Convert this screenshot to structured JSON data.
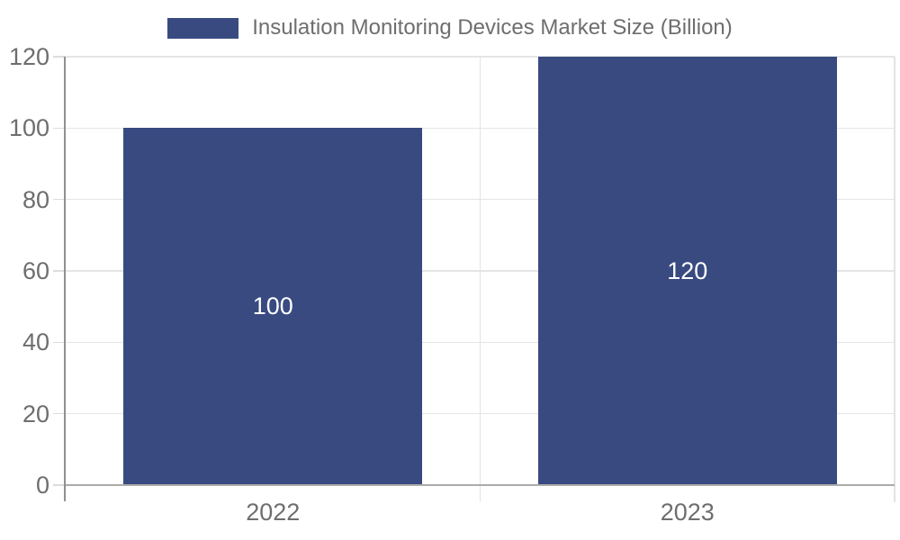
{
  "legend": {
    "label": "Insulation Monitoring Devices Market Size (Billion)"
  },
  "chart_data": {
    "type": "bar",
    "title": "Insulation Monitoring Devices Market Size (Billion)",
    "categories": [
      "2022",
      "2023"
    ],
    "series": [
      {
        "name": "Insulation Monitoring Devices Market Size (Billion)",
        "values": [
          100,
          120
        ]
      }
    ],
    "bar_value_labels": [
      "100",
      "120"
    ],
    "xlabel": "",
    "ylabel": "",
    "ylim": [
      0,
      120
    ],
    "yticks": [
      0,
      20,
      40,
      60,
      80,
      100,
      120
    ],
    "grid": true,
    "legend_position": "top-center",
    "colors": {
      "bar_fill": "#384A80",
      "bar_value_text": "#FFFFFF",
      "grid_line": "#E5E5E5",
      "split_line": "#E3E3E3",
      "y_axis_line": "#909090",
      "x_axis_line": "#ABABAB",
      "tick_mark": "#DCDCDC",
      "tick_label_text": "#6E6E6E",
      "legend_text": "#6E6E6E",
      "background": "#FFFFFF"
    }
  }
}
